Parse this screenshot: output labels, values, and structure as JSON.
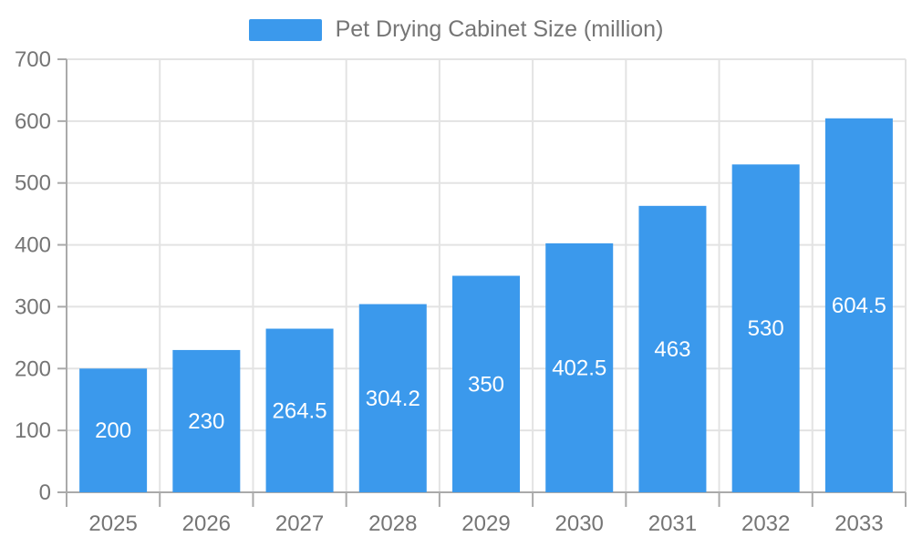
{
  "chart_data": {
    "type": "bar",
    "title": "Pet Drying Cabinet Size (million)",
    "categories": [
      "2025",
      "2026",
      "2027",
      "2028",
      "2029",
      "2030",
      "2031",
      "2032",
      "2033"
    ],
    "values": [
      200,
      230,
      264.5,
      304.2,
      350,
      402.5,
      463,
      530,
      604.5
    ],
    "value_labels": [
      "200",
      "230",
      "264.5",
      "304.2",
      "350",
      "402.5",
      "463",
      "530",
      "604.5"
    ],
    "xlabel": "",
    "ylabel": "",
    "ylim": [
      0,
      700
    ],
    "ytick_step": 100,
    "yticks": [
      "0",
      "100",
      "200",
      "300",
      "400",
      "500",
      "600",
      "700"
    ],
    "grid": true,
    "legend_position": "top-center"
  },
  "colors": {
    "bar": "#3b99ec",
    "axis": "#aaaaaa",
    "grid": "#e3e3e3",
    "tick_text": "#757575",
    "bar_label": "#ffffff",
    "background": "#ffffff"
  }
}
